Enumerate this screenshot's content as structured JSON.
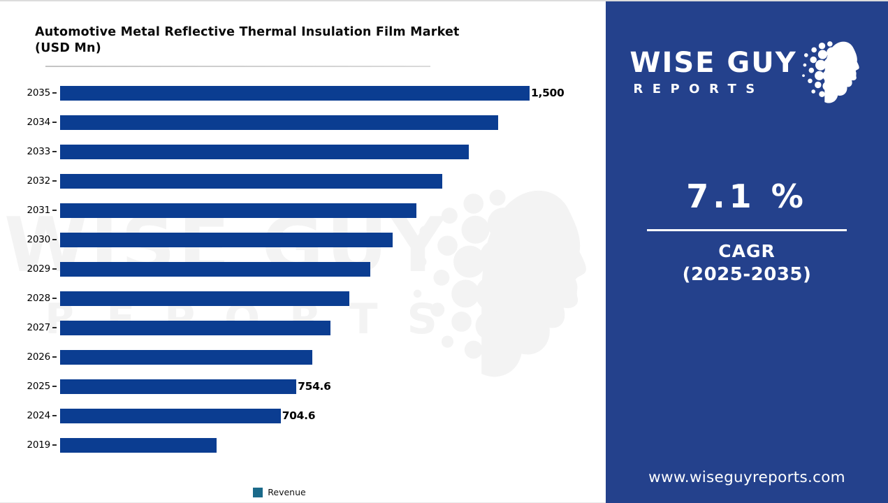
{
  "header": {
    "title_line1": "Automotive Metal Reflective Thermal Insulation Film Market",
    "title_line2": "(USD Mn)"
  },
  "chart_data": {
    "type": "bar",
    "orientation": "horizontal",
    "title": "Automotive Metal Reflective Thermal Insulation Film Market (USD Mn)",
    "xlabel": "",
    "ylabel": "",
    "xlim": [
      0,
      1500
    ],
    "grid": false,
    "legend_position": "bottom-center",
    "series_name": "Revenue",
    "value_axis_visible": false,
    "rows_top_to_bottom": true,
    "rows": [
      {
        "year": "2035",
        "value": 1500,
        "label": "1,500"
      },
      {
        "year": "2034",
        "value": 1400,
        "label": ""
      },
      {
        "year": "2033",
        "value": 1306,
        "label": ""
      },
      {
        "year": "2032",
        "value": 1220,
        "label": ""
      },
      {
        "year": "2031",
        "value": 1139,
        "label": ""
      },
      {
        "year": "2030",
        "value": 1063,
        "label": ""
      },
      {
        "year": "2029",
        "value": 991,
        "label": ""
      },
      {
        "year": "2028",
        "value": 925,
        "label": ""
      },
      {
        "year": "2027",
        "value": 864,
        "label": ""
      },
      {
        "year": "2026",
        "value": 806,
        "label": ""
      },
      {
        "year": "2025",
        "value": 754.6,
        "label": "754.6"
      },
      {
        "year": "2024",
        "value": 704.6,
        "label": "704.6"
      },
      {
        "year": "2019",
        "value": 500,
        "label": ""
      }
    ]
  },
  "legend": {
    "label": "Revenue"
  },
  "watermark": {
    "line1": "WISE GUY",
    "line2": "REPORTS"
  },
  "brand_panel": {
    "logo_line1": "WISE GUY",
    "logo_line2": "REPORTS",
    "cagr_value": "7.1 %",
    "cagr_label": "CAGR",
    "cagr_range": "(2025-2035)",
    "website": "www.wiseguyreports.com"
  },
  "colors": {
    "bar": "#0b3d91",
    "panel_background": "#24418c",
    "legend_swatch": "#1b6a8a",
    "title_text": "#0a0a0a",
    "watermark": "#f3f3f3"
  }
}
